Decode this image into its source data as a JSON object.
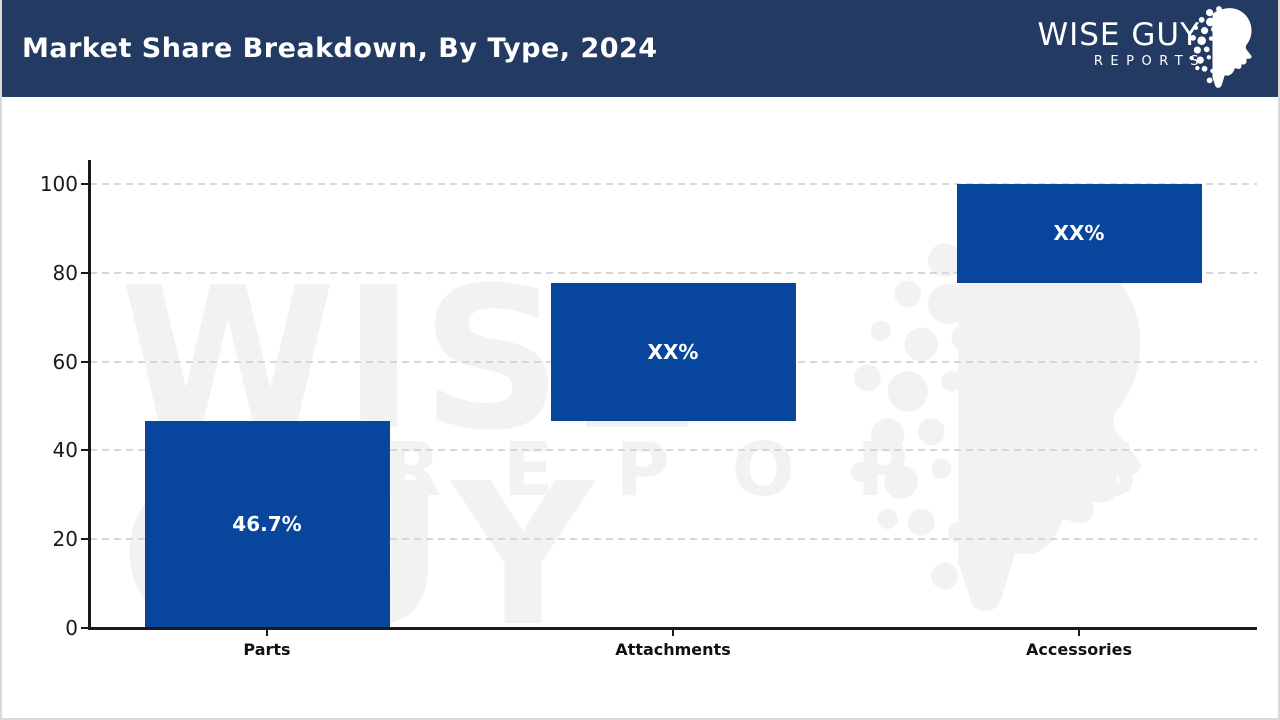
{
  "header": {
    "title": "Market Share Breakdown, By Type, 2024",
    "bg_color": "#233a63",
    "logo": {
      "line1": "WISE GUY",
      "line2": "REPORTS"
    }
  },
  "watermark": {
    "line1": "WISE GUY",
    "line2": "REPORTS"
  },
  "colors": {
    "bar": "#08459c",
    "header_navy": "#233a63",
    "gridline": "#d7d7d7",
    "axis": "#1a1a1a",
    "watermark_gray": "#f2f2f2"
  },
  "chart_data": {
    "type": "bar",
    "subtype": "floating-waterfall",
    "title": "Market Share Breakdown, By Type, 2024",
    "categories": [
      "Parts",
      "Attachments",
      "Accessories"
    ],
    "bars": [
      {
        "category": "Parts",
        "start": 0,
        "end": 46.7,
        "label": "46.7%"
      },
      {
        "category": "Attachments",
        "start": 46.7,
        "end": 77.8,
        "label": "XX%"
      },
      {
        "category": "Accessories",
        "start": 77.8,
        "end": 100,
        "label": "XX%"
      }
    ],
    "xlabel": "",
    "ylabel": "",
    "yticks": [
      0,
      20,
      40,
      60,
      80,
      100
    ],
    "ylim": [
      0,
      105
    ],
    "grid": "horizontal-dashed",
    "legend": "none",
    "bar_color": "#08459c"
  }
}
